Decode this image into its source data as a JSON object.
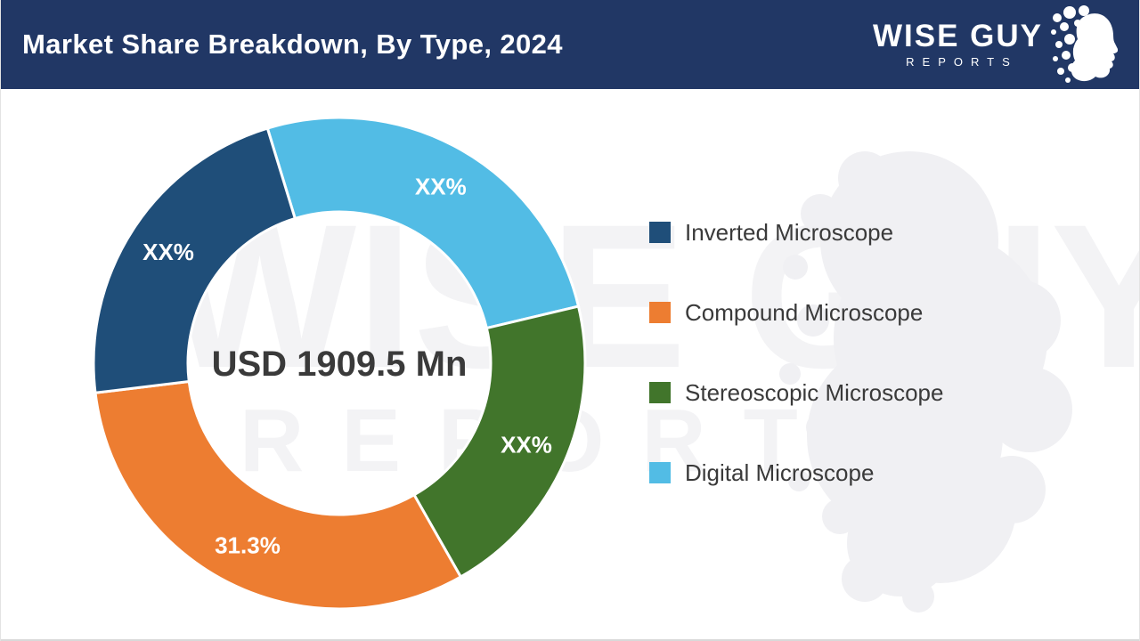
{
  "header": {
    "title": "Market Share Breakdown, By Type, 2024",
    "bg_color": "#213765",
    "logo": {
      "line1": "WISE GUY",
      "line2": "REPORTS"
    }
  },
  "watermark": {
    "line1": "WISE GUY",
    "line2": "REPORTS"
  },
  "chart_data": {
    "type": "pie",
    "subtype": "donut",
    "title": "Market Share Breakdown, By Type, 2024",
    "center_label": "USD 1909.5 Mn",
    "start_angle_deg": -17,
    "legend_position": "right",
    "segments": [
      {
        "name": "Digital Microscope",
        "value": 26.0,
        "label": "XX%",
        "color": "#52BCE5"
      },
      {
        "name": "Stereoscopic Microscope",
        "value": 20.5,
        "label": "XX%",
        "color": "#41752B"
      },
      {
        "name": "Compound Microscope",
        "value": 31.3,
        "label": "31.3%",
        "color": "#ED7D31"
      },
      {
        "name": "Inverted Microscope",
        "value": 22.2,
        "label": "XX%",
        "color": "#1F4E79"
      }
    ],
    "legend": [
      {
        "label": "Inverted Microscope",
        "color": "#1F4E79"
      },
      {
        "label": "Compound Microscope",
        "color": "#ED7D31"
      },
      {
        "label": "Stereoscopic Microscope",
        "color": "#41752B"
      },
      {
        "label": "Digital Microscope",
        "color": "#52BCE5"
      }
    ],
    "label_color": "#ffffff",
    "center_label_color": "#3a3a3a"
  }
}
